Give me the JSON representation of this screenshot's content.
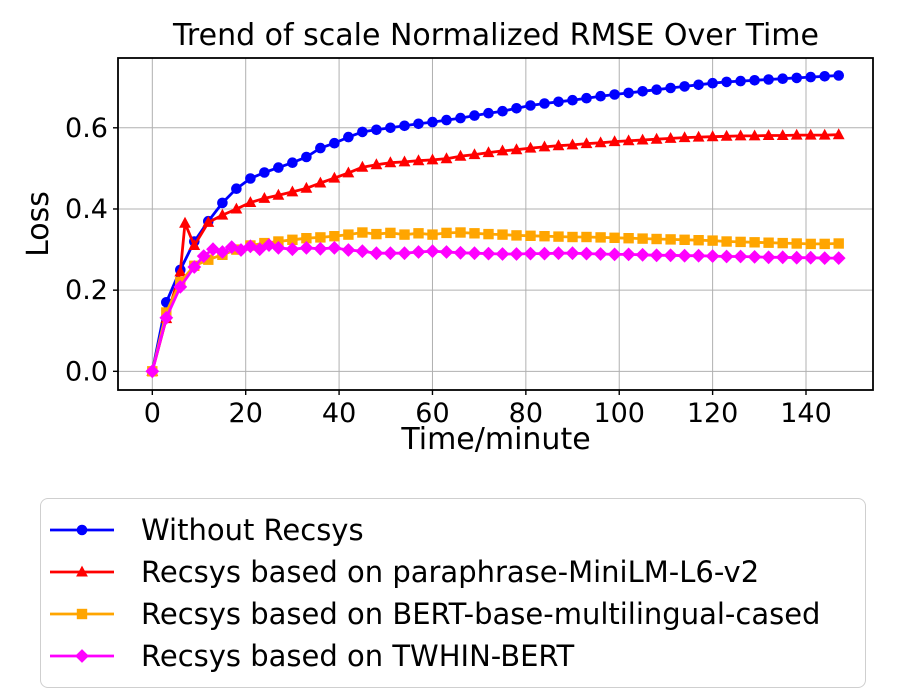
{
  "chart_data": {
    "type": "line",
    "title": "Trend of scale Normalized RMSE Over Time",
    "xlabel": "Time/minute",
    "ylabel": "Loss",
    "xlim": [
      -7.35,
      154.35
    ],
    "ylim": [
      -0.046,
      0.772
    ],
    "grid": true,
    "legend_position": "below",
    "xtick_values": [
      0,
      20,
      40,
      60,
      80,
      100,
      120,
      140
    ],
    "xtick_labels": [
      "0",
      "20",
      "40",
      "60",
      "80",
      "100",
      "120",
      "140"
    ],
    "ytick_values": [
      0.0,
      0.2,
      0.4,
      0.6
    ],
    "ytick_labels": [
      "0.0",
      "0.2",
      "0.4",
      "0.6"
    ],
    "series": [
      {
        "name": "Without Recsys",
        "color": "#0000ff",
        "marker": "circle",
        "x": [
          0,
          3,
          6,
          9,
          12,
          15,
          18,
          21,
          24,
          27,
          30,
          33,
          36,
          39,
          42,
          45,
          48,
          51,
          54,
          57,
          60,
          63,
          66,
          69,
          72,
          75,
          78,
          81,
          84,
          87,
          90,
          93,
          96,
          99,
          102,
          105,
          108,
          111,
          114,
          117,
          120,
          123,
          126,
          129,
          132,
          135,
          138,
          141,
          144,
          147
        ],
        "y": [
          0,
          0.17,
          0.25,
          0.32,
          0.37,
          0.415,
          0.45,
          0.475,
          0.49,
          0.502,
          0.514,
          0.528,
          0.55,
          0.562,
          0.577,
          0.59,
          0.595,
          0.6,
          0.605,
          0.61,
          0.614,
          0.619,
          0.624,
          0.63,
          0.636,
          0.641,
          0.648,
          0.655,
          0.66,
          0.664,
          0.668,
          0.673,
          0.678,
          0.682,
          0.686,
          0.69,
          0.694,
          0.698,
          0.702,
          0.706,
          0.71,
          0.713,
          0.715,
          0.717,
          0.719,
          0.721,
          0.723,
          0.725,
          0.727,
          0.729
        ]
      },
      {
        "name": "Recsys based on paraphrase-MiniLM-L6-v2",
        "color": "#ff0000",
        "marker": "triangle",
        "x": [
          0,
          3,
          6,
          7,
          9,
          12,
          15,
          18,
          21,
          24,
          27,
          30,
          33,
          36,
          39,
          42,
          45,
          48,
          51,
          54,
          57,
          60,
          63,
          66,
          69,
          72,
          75,
          78,
          81,
          84,
          87,
          90,
          93,
          96,
          99,
          102,
          105,
          108,
          111,
          114,
          117,
          120,
          123,
          126,
          129,
          132,
          135,
          138,
          141,
          144,
          147
        ],
        "y": [
          0,
          0.13,
          0.245,
          0.365,
          0.31,
          0.367,
          0.385,
          0.4,
          0.416,
          0.426,
          0.434,
          0.442,
          0.451,
          0.464,
          0.476,
          0.489,
          0.503,
          0.509,
          0.514,
          0.516,
          0.519,
          0.521,
          0.524,
          0.53,
          0.534,
          0.539,
          0.543,
          0.546,
          0.55,
          0.553,
          0.556,
          0.558,
          0.561,
          0.563,
          0.566,
          0.568,
          0.57,
          0.572,
          0.574,
          0.576,
          0.577,
          0.578,
          0.579,
          0.58,
          0.58,
          0.581,
          0.581,
          0.582,
          0.582,
          0.582,
          0.583
        ]
      },
      {
        "name": "Recsys based on BERT-base-multilingual-cased",
        "color": "#ffa500",
        "marker": "square",
        "x": [
          0,
          3,
          6,
          9,
          12,
          15,
          18,
          21,
          24,
          27,
          30,
          33,
          36,
          39,
          42,
          45,
          48,
          51,
          54,
          57,
          60,
          63,
          66,
          69,
          72,
          75,
          78,
          81,
          84,
          87,
          90,
          93,
          96,
          99,
          102,
          105,
          108,
          111,
          114,
          117,
          120,
          123,
          126,
          129,
          132,
          135,
          138,
          141,
          144,
          147
        ],
        "y": [
          0,
          0.145,
          0.22,
          0.26,
          0.275,
          0.287,
          0.3,
          0.31,
          0.316,
          0.32,
          0.324,
          0.328,
          0.33,
          0.333,
          0.337,
          0.342,
          0.338,
          0.341,
          0.337,
          0.34,
          0.337,
          0.341,
          0.342,
          0.34,
          0.338,
          0.337,
          0.335,
          0.334,
          0.333,
          0.332,
          0.331,
          0.331,
          0.33,
          0.329,
          0.328,
          0.327,
          0.326,
          0.325,
          0.324,
          0.323,
          0.322,
          0.32,
          0.319,
          0.318,
          0.317,
          0.316,
          0.315,
          0.314,
          0.314,
          0.315
        ]
      },
      {
        "name": "Recsys based on TWHIN-BERT",
        "color": "#ff00ff",
        "marker": "diamond",
        "x": [
          0,
          3,
          6,
          9,
          11,
          13,
          15,
          17,
          19,
          21,
          23,
          25,
          27,
          30,
          33,
          36,
          39,
          42,
          45,
          48,
          51,
          54,
          57,
          60,
          63,
          66,
          69,
          72,
          75,
          78,
          81,
          84,
          87,
          90,
          93,
          96,
          99,
          102,
          105,
          108,
          111,
          114,
          117,
          120,
          123,
          126,
          129,
          132,
          135,
          138,
          141,
          144,
          147
        ],
        "y": [
          0,
          0.132,
          0.208,
          0.257,
          0.284,
          0.301,
          0.294,
          0.306,
          0.299,
          0.308,
          0.301,
          0.311,
          0.304,
          0.301,
          0.304,
          0.302,
          0.304,
          0.299,
          0.296,
          0.291,
          0.291,
          0.291,
          0.294,
          0.296,
          0.294,
          0.292,
          0.291,
          0.29,
          0.289,
          0.289,
          0.29,
          0.29,
          0.291,
          0.291,
          0.29,
          0.289,
          0.288,
          0.288,
          0.287,
          0.286,
          0.286,
          0.285,
          0.285,
          0.284,
          0.283,
          0.283,
          0.282,
          0.281,
          0.281,
          0.28,
          0.28,
          0.279,
          0.279
        ]
      }
    ]
  }
}
